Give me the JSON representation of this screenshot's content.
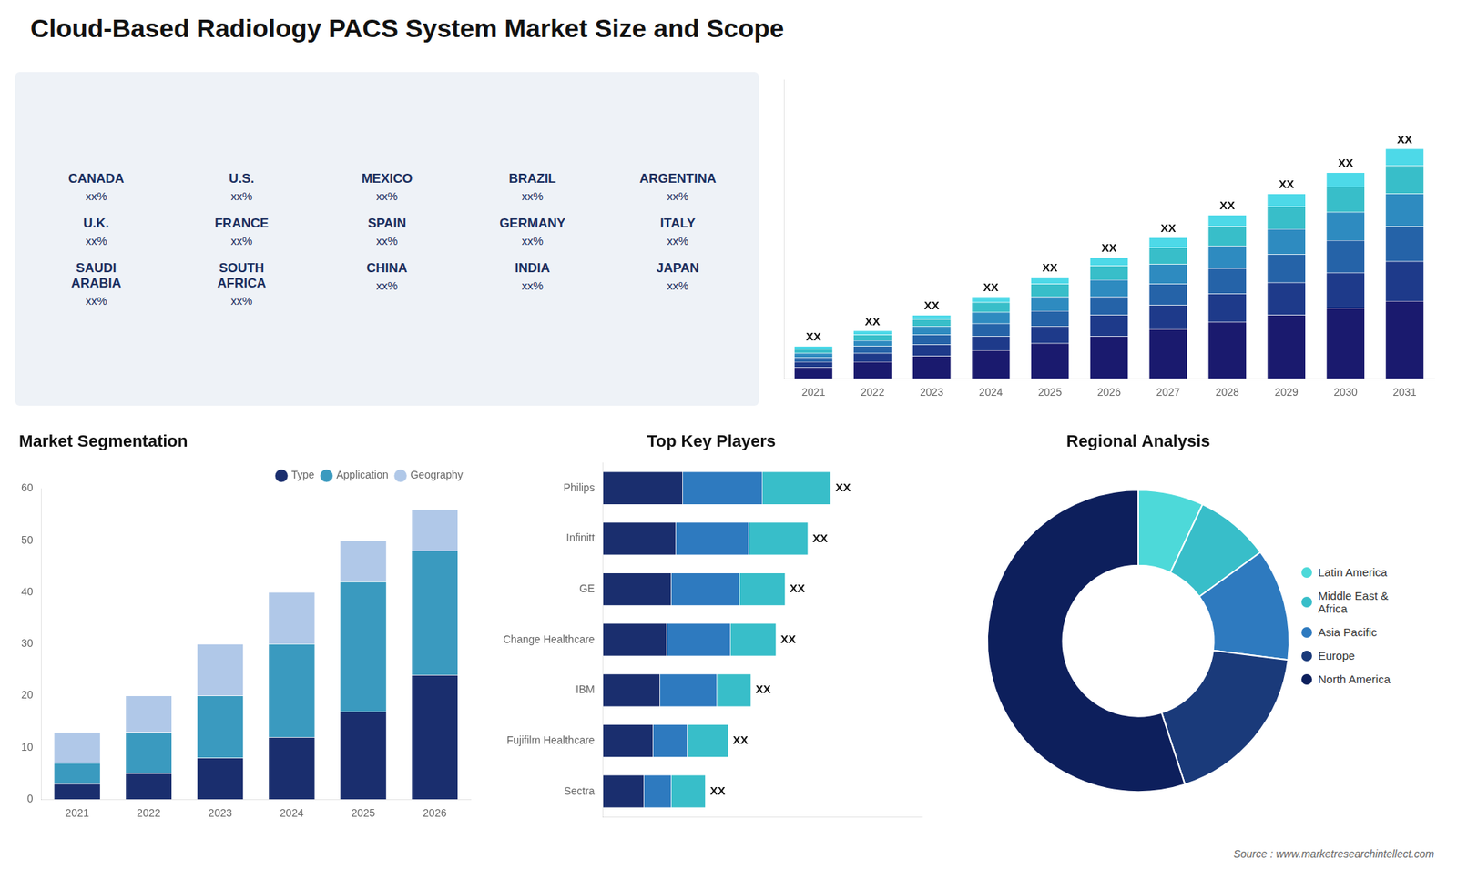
{
  "title": "Cloud-Based Radiology PACS System Market Size and Scope",
  "annotations": [
    "Source : www.marketresearchintellect.com"
  ],
  "chart_data": [
    {
      "type": "map",
      "annotations": [
        {
          "name": "CANADA",
          "label": "xx%"
        },
        {
          "name": "U.S.",
          "label": "xx%"
        },
        {
          "name": "MEXICO",
          "label": "xx%"
        },
        {
          "name": "BRAZIL",
          "label": "xx%"
        },
        {
          "name": "ARGENTINA",
          "label": "xx%"
        },
        {
          "name": "U.K.",
          "label": "xx%"
        },
        {
          "name": "FRANCE",
          "label": "xx%"
        },
        {
          "name": "SPAIN",
          "label": "xx%"
        },
        {
          "name": "GERMANY",
          "label": "xx%"
        },
        {
          "name": "ITALY",
          "label": "xx%"
        },
        {
          "name": "SAUDI\nARABIA",
          "label": "xx%"
        },
        {
          "name": "SOUTH\nAFRICA",
          "label": "xx%"
        },
        {
          "name": "CHINA",
          "label": "xx%"
        },
        {
          "name": "INDIA",
          "label": "xx%"
        },
        {
          "name": "JAPAN",
          "label": "xx%"
        }
      ]
    },
    {
      "type": "bar",
      "stacked": true,
      "categories": [
        "2021",
        "2022",
        "2023",
        "2024",
        "2025",
        "2026",
        "2027",
        "2028",
        "2029",
        "2030",
        "2031"
      ],
      "series": [
        {
          "color": "#1a1a6e",
          "values": [
            0.8,
            1.2,
            1.6,
            2.0,
            2.5,
            3.0,
            3.5,
            4.0,
            4.5,
            5.0,
            5.5
          ]
        },
        {
          "color": "#1e3a8a",
          "values": [
            0.4,
            0.6,
            0.8,
            1.0,
            1.2,
            1.5,
            1.7,
            2.0,
            2.3,
            2.5,
            2.8
          ]
        },
        {
          "color": "#2563a8",
          "values": [
            0.3,
            0.5,
            0.7,
            0.9,
            1.1,
            1.3,
            1.5,
            1.8,
            2.0,
            2.3,
            2.5
          ]
        },
        {
          "color": "#2e8bc0",
          "values": [
            0.3,
            0.4,
            0.6,
            0.8,
            1.0,
            1.2,
            1.4,
            1.6,
            1.8,
            2.0,
            2.3
          ]
        },
        {
          "color": "#38bec9",
          "values": [
            0.3,
            0.4,
            0.5,
            0.7,
            0.9,
            1.0,
            1.2,
            1.4,
            1.6,
            1.8,
            2.0
          ]
        },
        {
          "color": "#4dd9e8",
          "values": [
            0.2,
            0.3,
            0.3,
            0.4,
            0.5,
            0.6,
            0.7,
            0.8,
            0.9,
            1.0,
            1.2
          ],
          "value_labels": [
            "XX",
            "XX",
            "XX",
            "XX",
            "XX",
            "XX",
            "XX",
            "XX",
            "XX",
            "XX",
            "XX"
          ]
        }
      ],
      "ylim": [
        0,
        21.19
      ],
      "tick_labels": "x",
      "grid": false
    },
    {
      "type": "bar",
      "title": "Market Segmentation",
      "stacked": true,
      "categories": [
        "2021",
        "2022",
        "2023",
        "2024",
        "2025",
        "2026"
      ],
      "series": [
        {
          "name": "Type",
          "color": "#1a2e6e",
          "values": [
            3,
            5,
            8,
            12,
            17,
            24
          ]
        },
        {
          "name": "Application",
          "color": "#3a9abf",
          "values": [
            4,
            8,
            12,
            18,
            25,
            24
          ]
        },
        {
          "name": "Geography",
          "color": "#b0c8e8",
          "values": [
            6,
            7,
            10,
            10,
            8,
            8
          ]
        }
      ],
      "ylim": [
        0,
        60
      ],
      "yticks": [
        0,
        10,
        20,
        30,
        40,
        50,
        60
      ],
      "legend": "upper right",
      "grid": false
    },
    {
      "type": "bar",
      "title": "Top Key Players",
      "orientation": "horizontal",
      "stacked": true,
      "categories": [
        "Philips",
        "Infinitt",
        "GE",
        "Change Healthcare",
        "IBM",
        "Fujifilm Healthcare",
        "Sectra"
      ],
      "series": [
        {
          "color": "#1a2e6e",
          "values": [
            3.5,
            3.2,
            3.0,
            2.8,
            2.5,
            2.2,
            1.8
          ]
        },
        {
          "color": "#2e7abf",
          "values": [
            3.5,
            3.2,
            3.0,
            2.8,
            2.5,
            1.5,
            1.2
          ]
        },
        {
          "color": "#38bec9",
          "values": [
            3.0,
            2.6,
            2.0,
            2.0,
            1.5,
            1.8,
            1.5
          ],
          "value_labels": [
            "XX",
            "XX",
            "XX",
            "XX",
            "XX",
            "XX",
            "XX"
          ]
        }
      ],
      "xlim": [
        0,
        14
      ],
      "tick_labels": "y",
      "grid": false
    },
    {
      "type": "doughnut",
      "title": "Regional Analysis",
      "categories": [
        "Latin America",
        "Middle East &\nAfrica",
        "Asia Pacific",
        "Europe",
        "North America"
      ],
      "values": [
        7,
        8,
        12,
        18,
        55
      ],
      "colors": [
        "#4dd9d9",
        "#38bec9",
        "#2e7abf",
        "#1a3a7a",
        "#0d1f5c"
      ],
      "legend": "right"
    }
  ]
}
